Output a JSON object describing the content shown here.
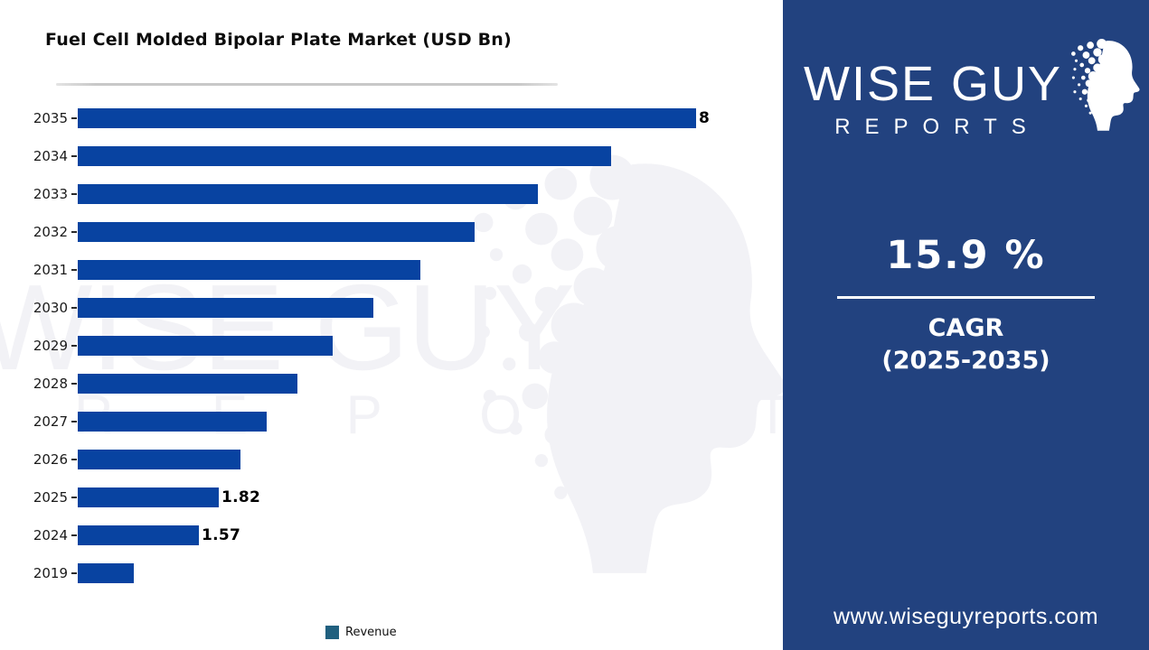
{
  "chart": {
    "title": "Fuel Cell Molded Bipolar Plate Market (USD Bn)",
    "bar_color": "#0843a1",
    "legend": {
      "label": "Revenue",
      "swatch_color": "#20607f"
    },
    "watermark": {
      "line1": "WISE GUY",
      "line2": "R E P O R T S"
    }
  },
  "chart_data": {
    "type": "bar",
    "orientation": "horizontal",
    "title": "Fuel Cell Molded Bipolar Plate Market (USD Bn)",
    "categories": [
      "2035",
      "2034",
      "2033",
      "2032",
      "2031",
      "2030",
      "2029",
      "2028",
      "2027",
      "2026",
      "2025",
      "2024",
      "2019"
    ],
    "values": [
      8.0,
      6.9,
      5.95,
      5.13,
      4.43,
      3.82,
      3.3,
      2.84,
      2.45,
      2.11,
      1.82,
      1.57,
      0.73
    ],
    "bar_labels": {
      "2035": "8",
      "2025": "1.82",
      "2024": "1.57"
    },
    "series_name": "Revenue",
    "xlabel": "",
    "ylabel": "",
    "xlim": [
      0,
      9
    ],
    "grid": false,
    "legend_position": "lower center"
  },
  "brand_panel": {
    "background_color": "#22427f",
    "logo": {
      "line1": "WISE GUY",
      "line2": "REPORTS"
    },
    "cagr": {
      "value": "15.9 %",
      "label_line1": "CAGR",
      "label_line2": "(2025-2035)"
    },
    "website": "www.wiseguyreports.com"
  }
}
